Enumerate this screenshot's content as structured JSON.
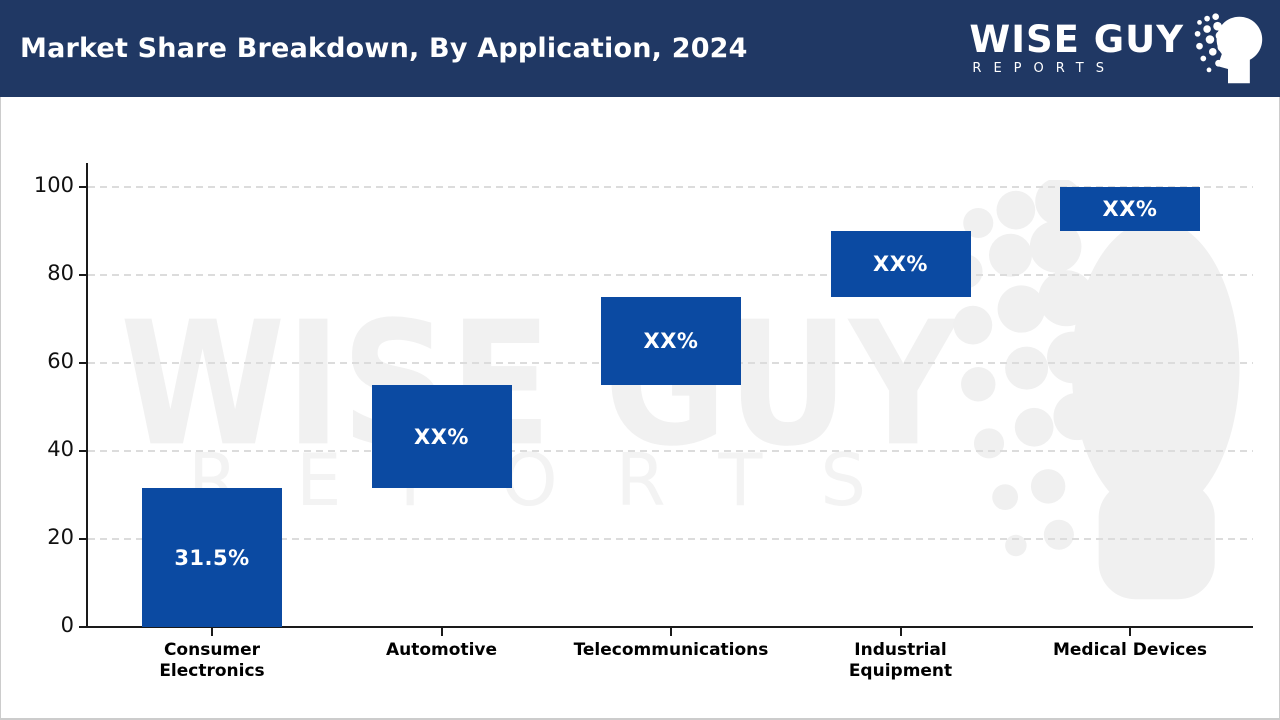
{
  "header": {
    "title": "Market Share Breakdown, By Application, 2024",
    "logo": {
      "wordmark": "WISE GUY",
      "subtext": "REPORTS"
    }
  },
  "watermark": {
    "wordmark": "WISE GUY",
    "subtext": "REPORTS"
  },
  "colors": {
    "header_bg": "#203864",
    "bar_fill": "#0b4aa2",
    "bar_label": "#ffffff",
    "gridline": "#dcdcdc",
    "axis": "#1a1a1a",
    "watermark": "#f0f0f0"
  },
  "chart_data": {
    "type": "bar",
    "subtype": "waterfall-cumulative-share",
    "title": "Market Share Breakdown, By Application, 2024",
    "xlabel": "",
    "ylabel": "",
    "ylim": [
      0,
      105
    ],
    "yticks": [
      0,
      20,
      40,
      60,
      80,
      100
    ],
    "grid": "horizontal-dashed",
    "legend": "none",
    "categories": [
      "Consumer Electronics",
      "Automotive",
      "Telecommunications",
      "Industrial Equipment",
      "Medical Devices"
    ],
    "xtick_lines": [
      [
        "Consumer",
        "Electronics"
      ],
      [
        "Automotive"
      ],
      [
        "Telecommunications"
      ],
      [
        "Industrial",
        "Equipment"
      ],
      [
        "Medical Devices"
      ]
    ],
    "segments": [
      {
        "category": "Consumer Electronics",
        "start": 0,
        "end": 31.5,
        "value": 31.5,
        "value_label": "31.5%"
      },
      {
        "category": "Automotive",
        "start": 31.5,
        "end": 55,
        "value": 23.5,
        "value_label": "XX%"
      },
      {
        "category": "Telecommunications",
        "start": 55,
        "end": 75,
        "value": 20,
        "value_label": "XX%"
      },
      {
        "category": "Industrial Equipment",
        "start": 75,
        "end": 90,
        "value": 15,
        "value_label": "XX%"
      },
      {
        "category": "Medical Devices",
        "start": 90,
        "end": 100,
        "value": 10,
        "value_label": "XX%"
      }
    ]
  }
}
